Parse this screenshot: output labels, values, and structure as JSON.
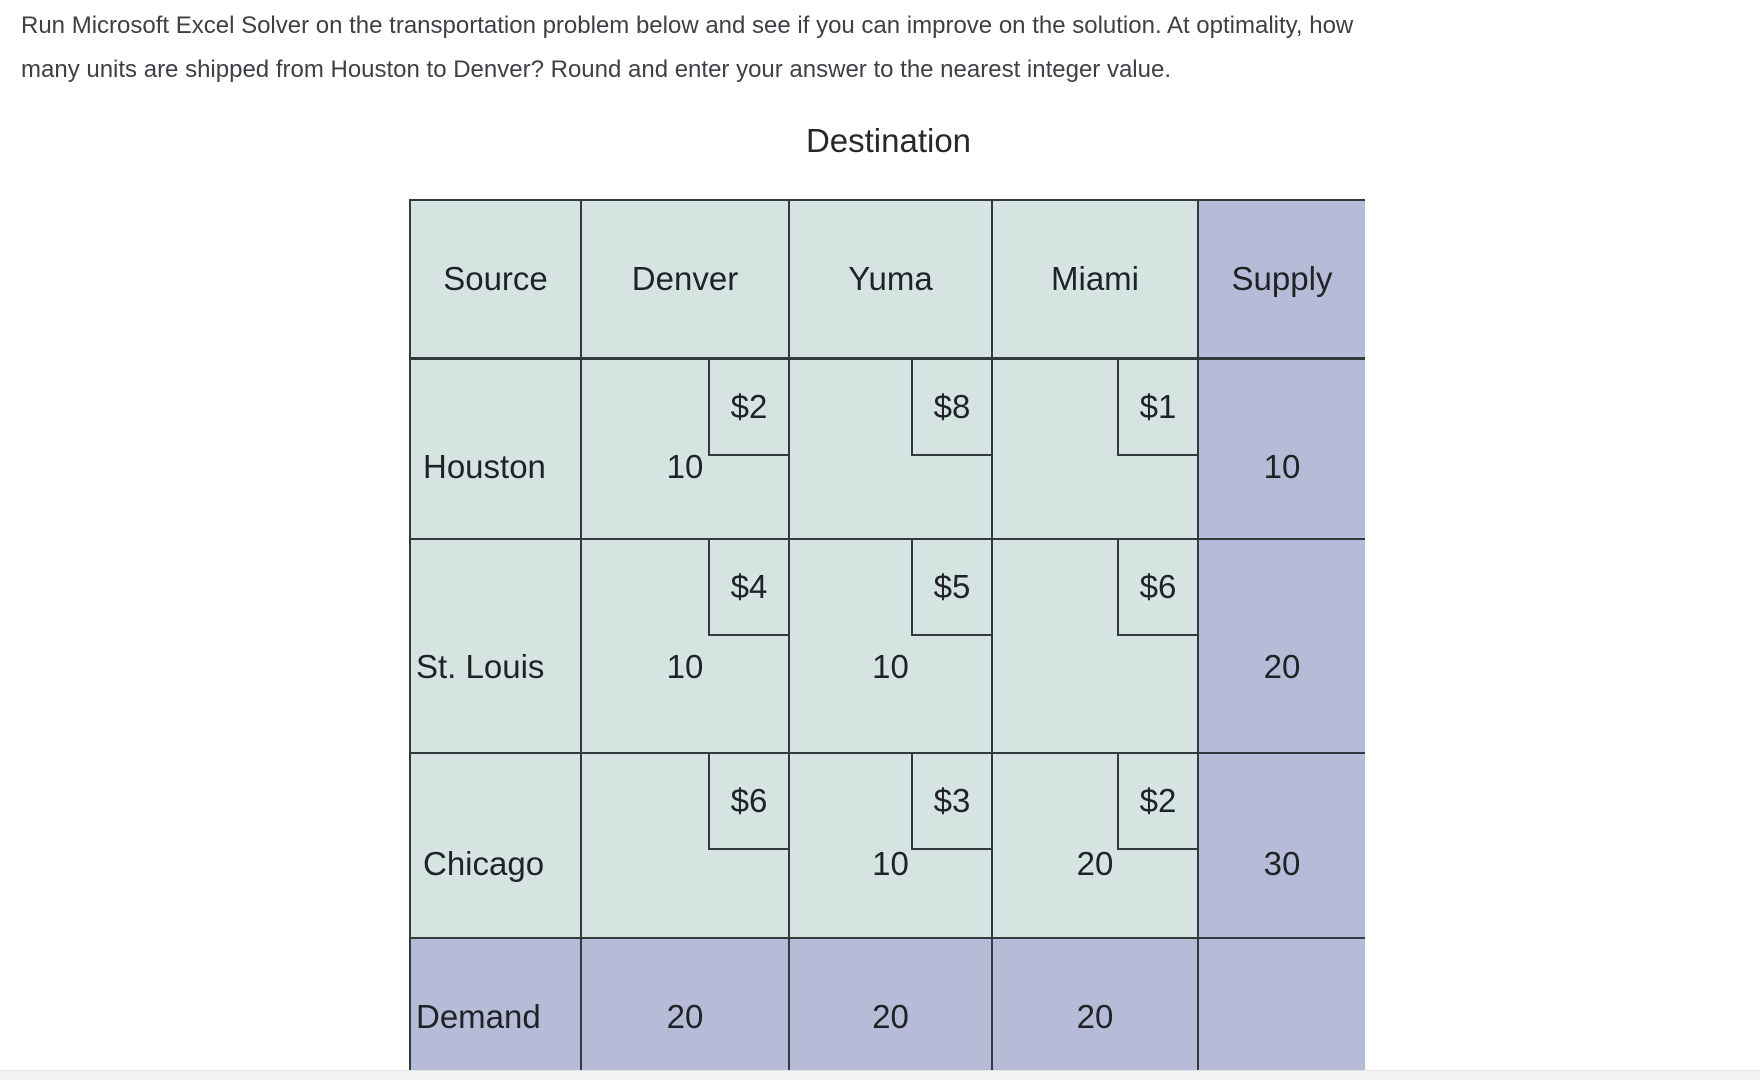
{
  "question": {
    "line1": "Run Microsoft Excel Solver on the transportation problem below and see if you can improve on the solution. At optimality, how",
    "line2": "many units are shipped from Houston to Denver? Round and enter your answer to the nearest integer value."
  },
  "table": {
    "title": "Destination",
    "corner_label": "Source",
    "destination_headers": [
      "Denver",
      "Yuma",
      "Miami"
    ],
    "supply_label": "Supply",
    "demand_label": "Demand",
    "rows": [
      {
        "source": "Houston",
        "cells": [
          {
            "cost": "$2",
            "shipment": "10"
          },
          {
            "cost": "$8",
            "shipment": ""
          },
          {
            "cost": "$1",
            "shipment": ""
          }
        ],
        "supply": "10"
      },
      {
        "source": "St. Louis",
        "cells": [
          {
            "cost": "$4",
            "shipment": "10"
          },
          {
            "cost": "$5",
            "shipment": "10"
          },
          {
            "cost": "$6",
            "shipment": ""
          }
        ],
        "supply": "20"
      },
      {
        "source": "Chicago",
        "cells": [
          {
            "cost": "$6",
            "shipment": ""
          },
          {
            "cost": "$3",
            "shipment": "10"
          },
          {
            "cost": "$2",
            "shipment": "20"
          }
        ],
        "supply": "30"
      }
    ],
    "demand": [
      "20",
      "20",
      "20"
    ],
    "colors": {
      "cell_teal": "#d6e4e1",
      "cell_purple": "#b6bcd8",
      "border": "#333a3c"
    }
  }
}
